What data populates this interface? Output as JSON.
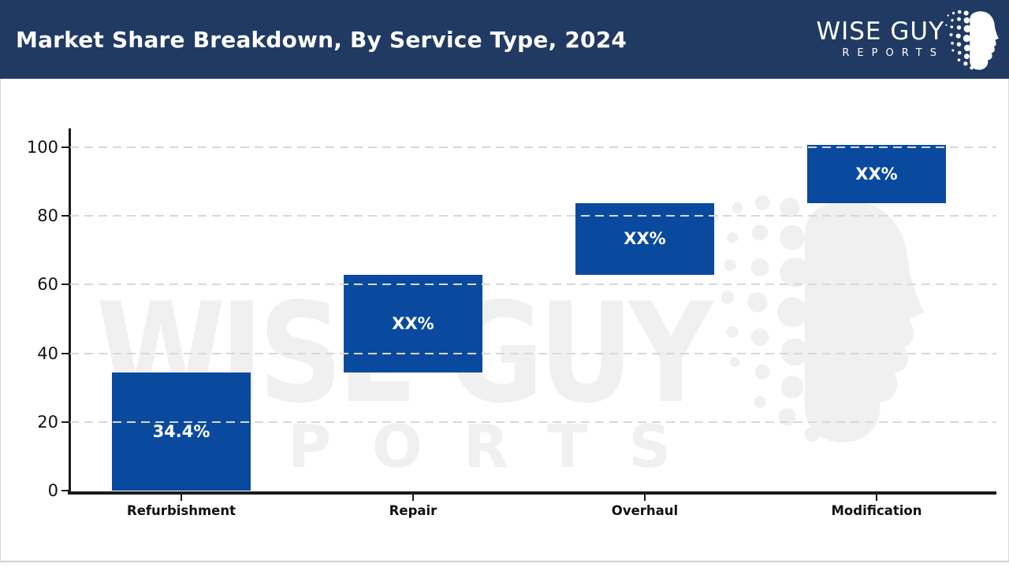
{
  "header": {
    "title": "Market Share Breakdown, By Service Type, 2024",
    "bg_color": "#203a64",
    "logo": {
      "name": "WISE GUY",
      "sub": "REPORTS"
    }
  },
  "watermark": {
    "name": "WISE GUY",
    "sub": "REPORTS"
  },
  "chart_data": {
    "type": "bar",
    "subtype": "stacked_percentage_waterfall",
    "title": "Market Share Breakdown, By Service Type, 2024",
    "categories": [
      "Refurbishment",
      "Repair",
      "Overhaul",
      "Modification"
    ],
    "bars": [
      {
        "category": "Refurbishment",
        "start": 0,
        "end": 34.4,
        "label": "34.4%"
      },
      {
        "category": "Repair",
        "start": 34.4,
        "end": 62.9,
        "label": "XX%"
      },
      {
        "category": "Overhaul",
        "start": 62.9,
        "end": 83.8,
        "label": "XX%"
      },
      {
        "category": "Modification",
        "start": 83.8,
        "end": 100.6,
        "label": "XX%"
      }
    ],
    "xlabel": "",
    "ylabel": "",
    "ylim": [
      0,
      105
    ],
    "yticks": [
      0,
      20,
      40,
      60,
      80,
      100
    ],
    "grid": "horizontal dashed gridlines drawn over bars",
    "legend": "none",
    "bar_color": "#0a4a9e",
    "axis_color": "#1a1a1a",
    "gridline_color": "#d8d8d8",
    "value_label_color": "#ffffff"
  }
}
